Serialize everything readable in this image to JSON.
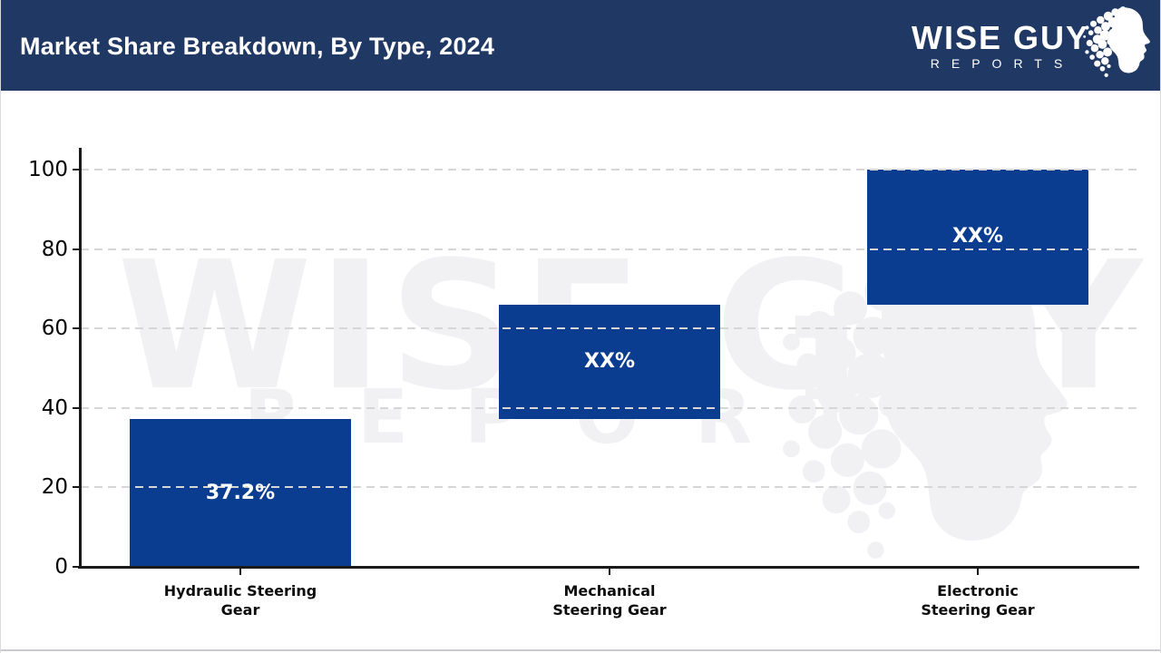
{
  "header": {
    "title": "Market Share Breakdown, By Type, 2024",
    "logo_line1": "WISE GUY",
    "logo_line2": "REPORTS"
  },
  "watermark": {
    "line1": "WISE GUY",
    "line2": "REPORTS"
  },
  "colors": {
    "header_bg": "#203864",
    "bar": "#0a3d8f",
    "grid": "#d6d6d6",
    "axis": "#1a1a1a",
    "watermark": "#f1f1f4",
    "bar_label": "#ffffff"
  },
  "chart_data": {
    "type": "bar",
    "variant": "waterfall-stacked-breakdown",
    "title": "Market Share Breakdown, By Type, 2024",
    "categories": [
      "Hydraulic Steering Gear",
      "Mechanical Steering Gear",
      "Electronic Steering Gear"
    ],
    "categories_lines": [
      [
        "Hydraulic Steering",
        "Gear"
      ],
      [
        "Mechanical",
        "Steering Gear"
      ],
      [
        "Electronic",
        "Steering Gear"
      ]
    ],
    "segments": [
      {
        "category": "Hydraulic Steering Gear",
        "label": "37.2%",
        "start": 0,
        "end": 37.2
      },
      {
        "category": "Mechanical Steering Gear",
        "label": "XX%",
        "start": 37.2,
        "end": 66
      },
      {
        "category": "Electronic Steering Gear",
        "label": "XX%",
        "start": 66,
        "end": 100
      }
    ],
    "y_ticks": [
      0,
      20,
      40,
      60,
      80,
      100
    ],
    "ylim": [
      0,
      105
    ],
    "xlabel": "",
    "ylabel": "",
    "grid": "horizontal-dashed",
    "legend": "none"
  }
}
